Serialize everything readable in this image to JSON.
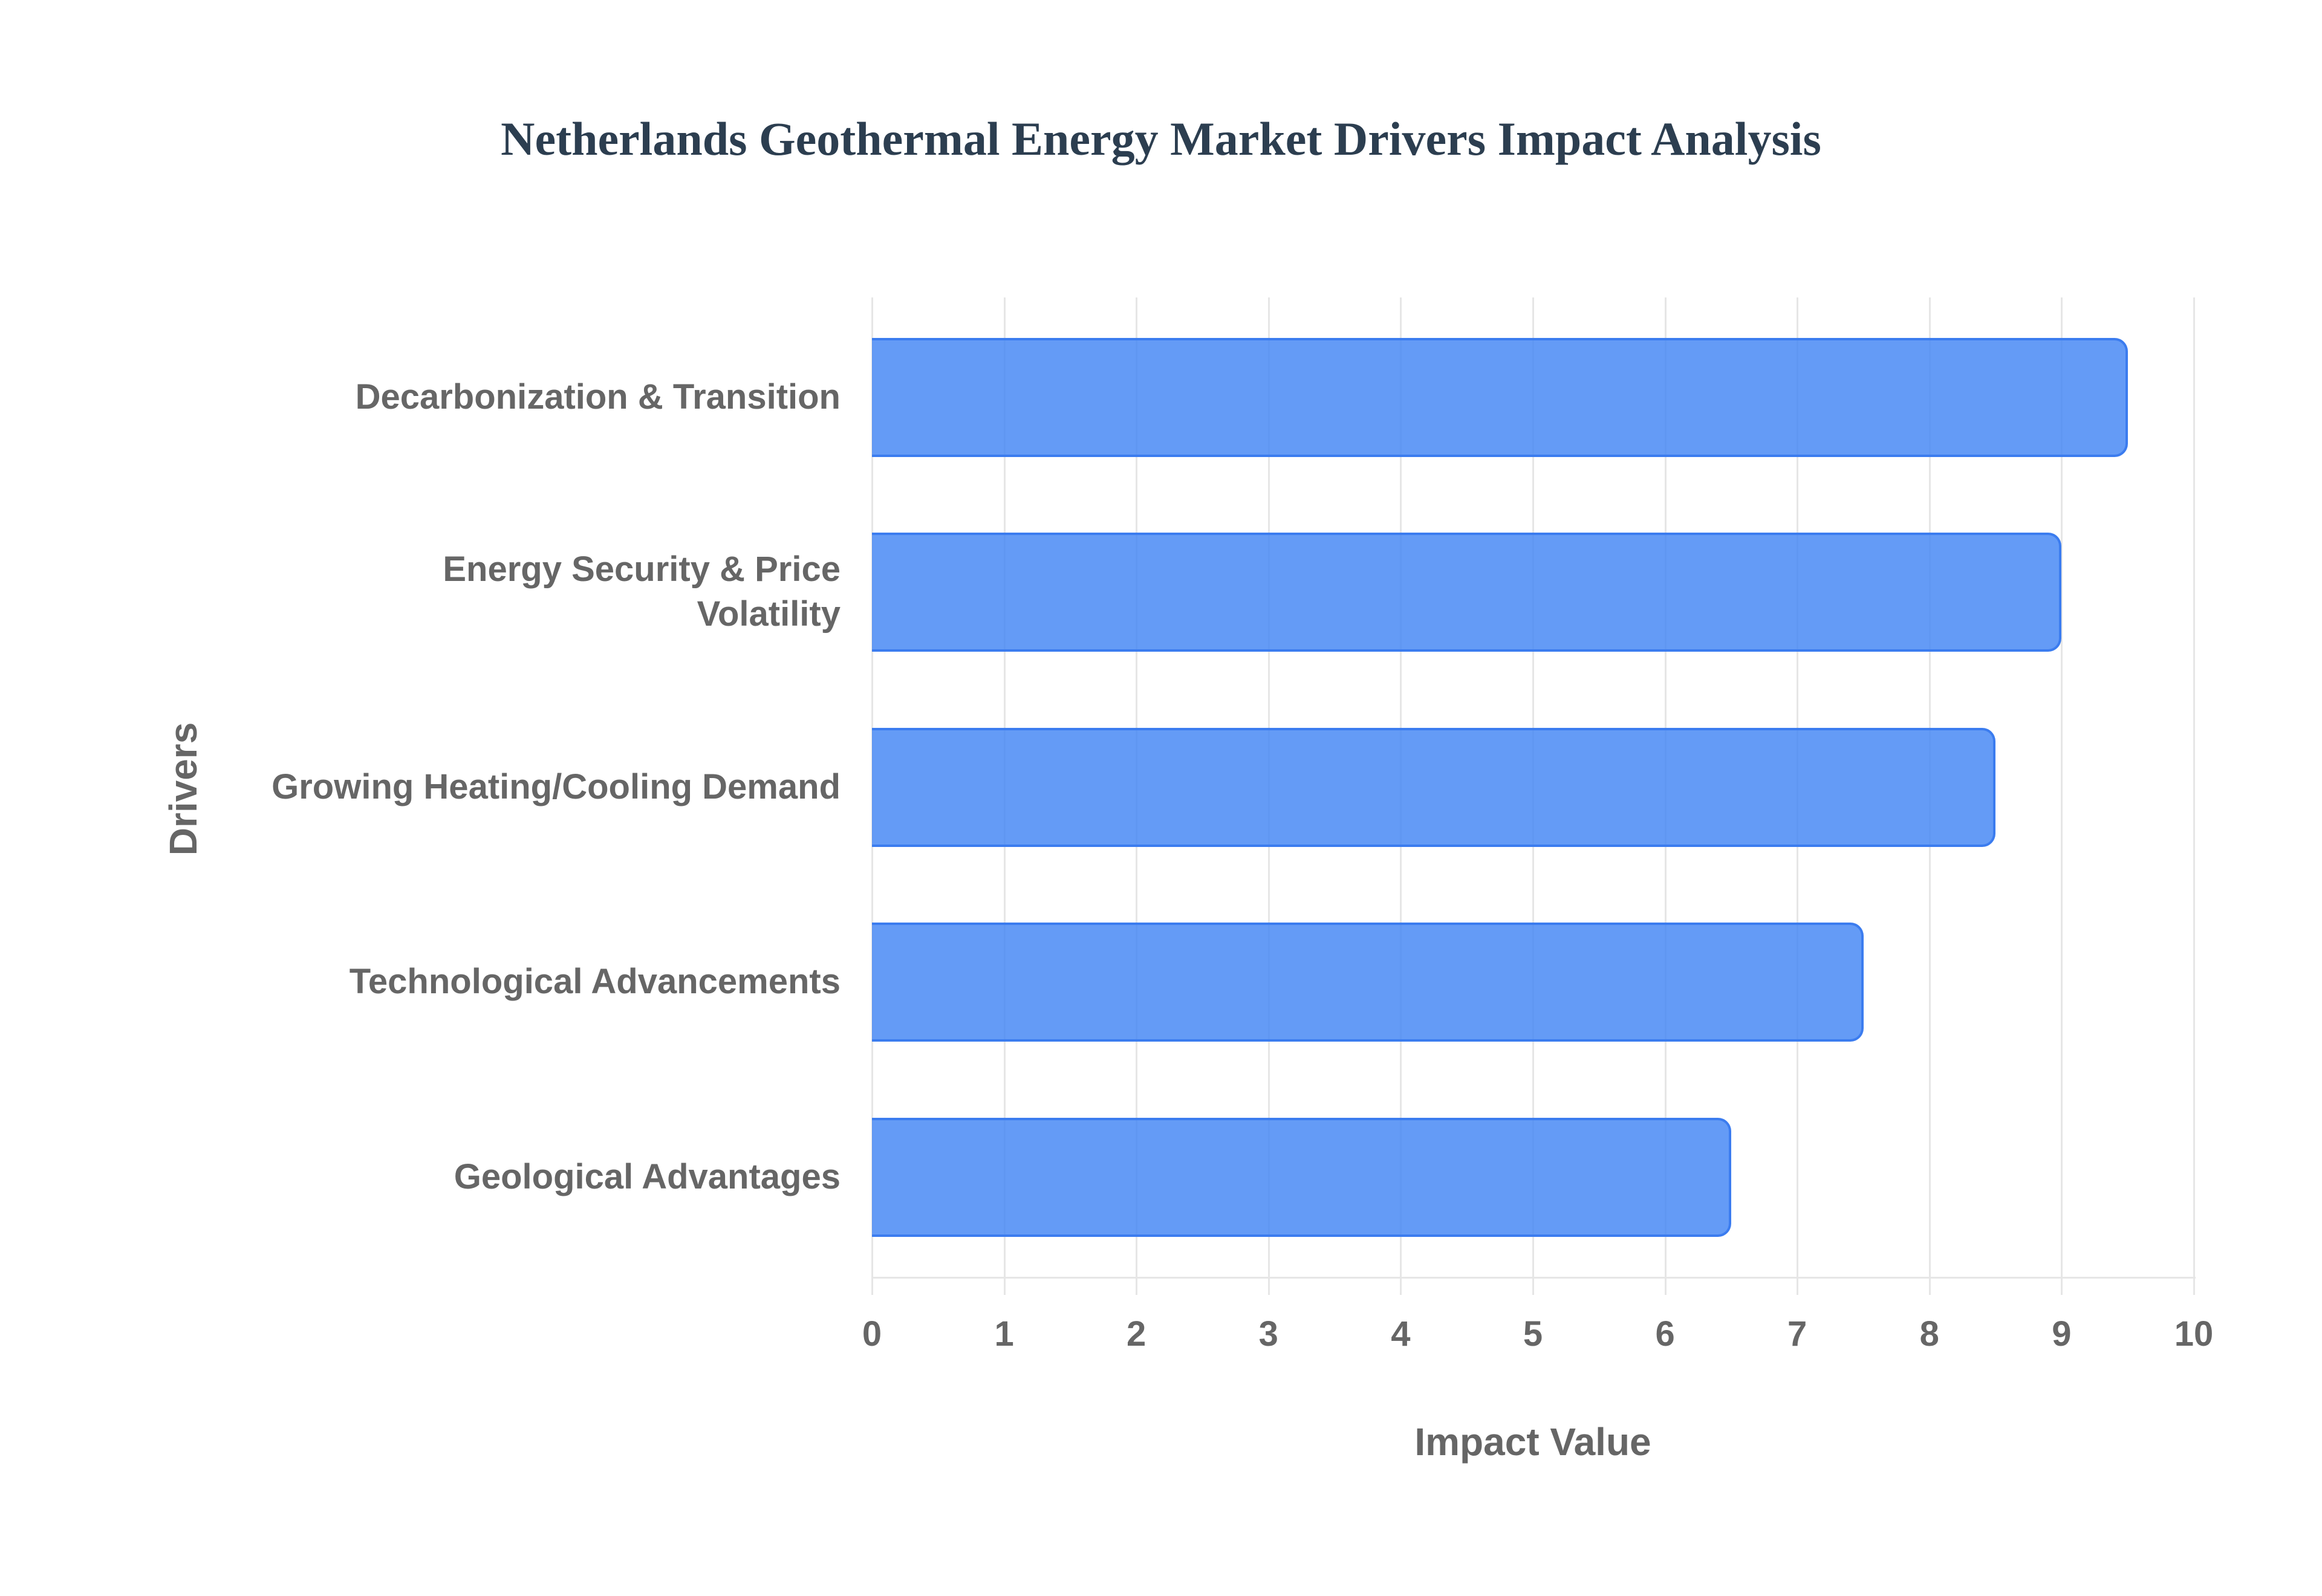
{
  "chart_data": {
    "type": "bar",
    "orientation": "horizontal",
    "title": "Netherlands Geothermal Energy Market Drivers Impact Analysis",
    "xlabel": "Impact Value",
    "ylabel": "Drivers",
    "categories": [
      "Decarbonization & Transition",
      "Energy Security & Price Volatility",
      "Growing Heating/Cooling Demand",
      "Technological Advancements",
      "Geological Advantages"
    ],
    "values": [
      9.5,
      9.0,
      8.5,
      7.5,
      6.5
    ],
    "xlim": [
      0,
      10
    ],
    "x_ticks": [
      "0",
      "1",
      "2",
      "3",
      "4",
      "5",
      "6",
      "7",
      "8",
      "9",
      "10"
    ],
    "grid": true,
    "legend": false,
    "bar_color": "#6299f4",
    "bar_border_color": "#3b7cef"
  },
  "labels": {
    "y": [
      [
        "Decarbonization & Transition"
      ],
      [
        "Energy Security & Price",
        "Volatility"
      ],
      [
        "Growing Heating/Cooling Demand"
      ],
      [
        "Technological Advancements"
      ],
      [
        "Geological Advantages"
      ]
    ]
  }
}
